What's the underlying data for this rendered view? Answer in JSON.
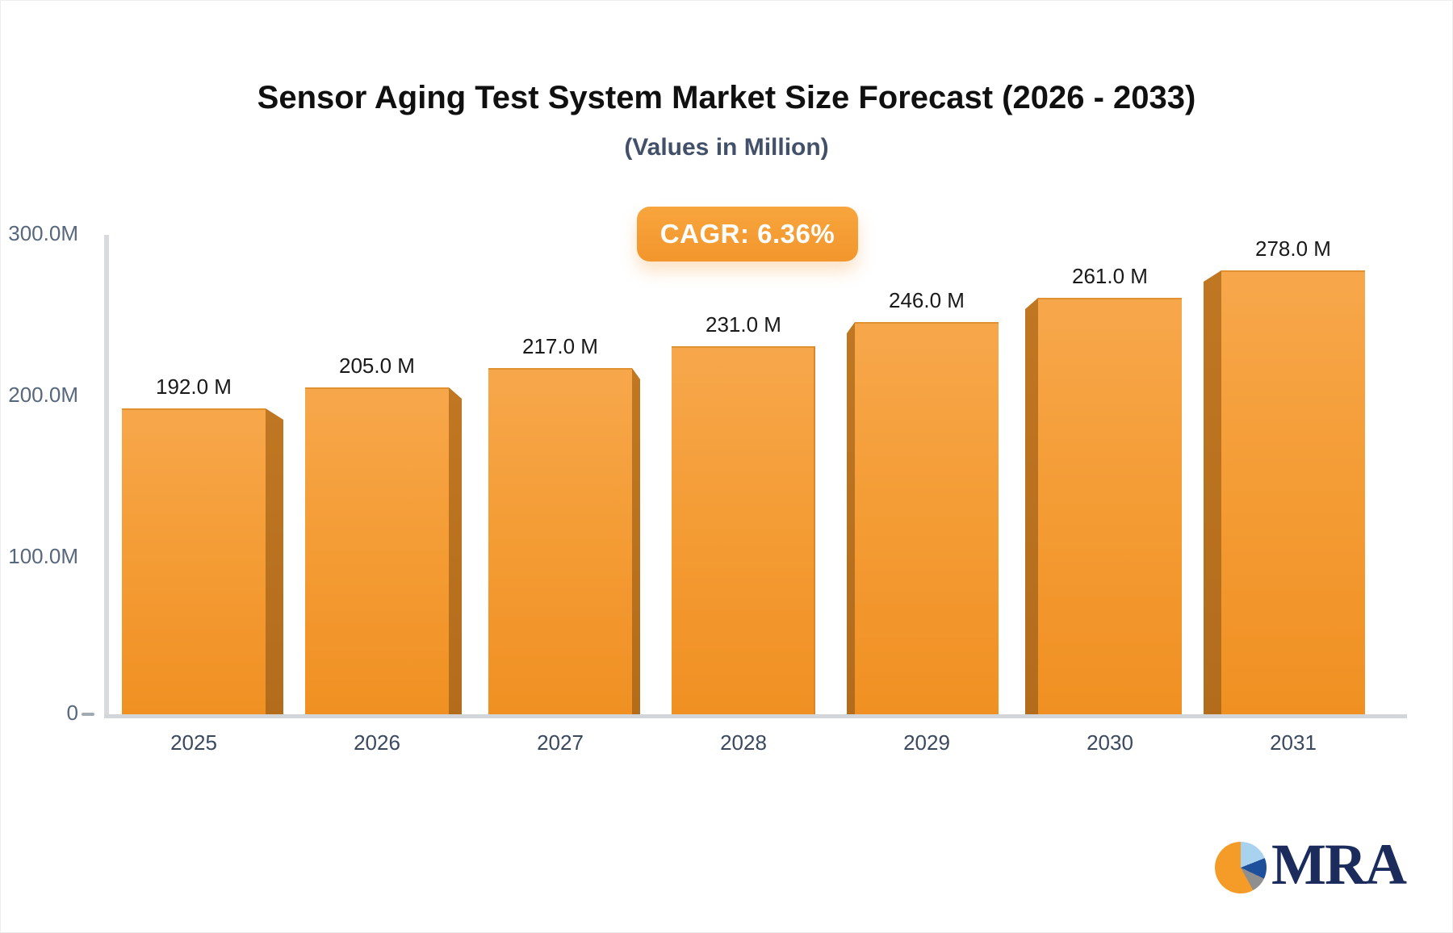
{
  "header": {
    "title": "Sensor Aging Test System Market Size Forecast (2026 - 2033)",
    "subtitle": "(Values in Million)",
    "badge_label": "CAGR: 6.36%"
  },
  "chart_data": {
    "type": "bar",
    "title": "Sensor Aging Test System Market Size Forecast (2026 - 2033)",
    "subtitle": "(Values in Million)",
    "categories": [
      "2025",
      "2026",
      "2027",
      "2028",
      "2029",
      "2030",
      "2031"
    ],
    "values": [
      192,
      205,
      217,
      231,
      246,
      261,
      278
    ],
    "value_labels": [
      "192.0 M",
      "205.0 M",
      "217.0 M",
      "231.0 M",
      "246.0 M",
      "261.0 M",
      "278.0 M"
    ],
    "unit": "Million",
    "ylim": [
      0,
      300
    ],
    "ytick_labels": [
      "300.0M",
      "200.0M",
      "100.0M",
      "0"
    ],
    "grid": false,
    "legend": false,
    "annotation": "CAGR: 6.36%",
    "bar_style": "3d-extruded",
    "colors": {
      "bar_face_top": "#f7a74b",
      "bar_face_bottom": "#f09022",
      "bar_side": "#b86f1e",
      "badge": "#f2962d",
      "axis": "#d5d8dc",
      "value_label": "#191919",
      "year_label": "#3a4960",
      "ytick_label": "#57677c"
    }
  },
  "logo": {
    "text": "MRA",
    "icon": "pie-chart",
    "icon_colors": [
      "#f59b27",
      "#a9d2ee",
      "#1d4f9a",
      "#8f8f8f"
    ],
    "text_color": "#1a2b5c"
  }
}
